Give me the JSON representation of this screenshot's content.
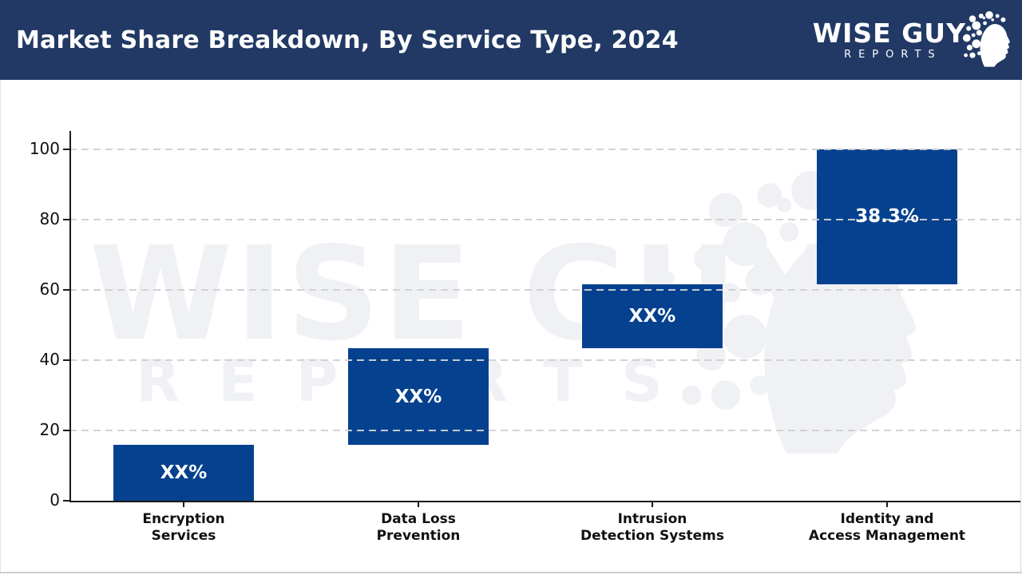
{
  "header": {
    "title": "Market Share Breakdown, By Service Type, 2024",
    "logo": {
      "line1": "WISE GUY",
      "line2": "REPORTS",
      "head_icon": "dotted-head-profile-icon"
    }
  },
  "watermark": {
    "line1": "WISE GUY",
    "line2": "REPORTS"
  },
  "colors": {
    "header_bg": "#213964",
    "bar": "#05418f",
    "bar_label_text": "#ffffff",
    "grid": "#d0d0d2",
    "axis": "#1a1a1a",
    "watermark": "#f0f1f4",
    "title_text": "#ffffff"
  },
  "chart_data": {
    "type": "bar",
    "variant": "waterfall-floating-bars",
    "title": "Market Share Breakdown, By Service Type, 2024",
    "categories": [
      "Encryption Services",
      "Data Loss Prevention",
      "Intrusion Detection Systems",
      "Identity and Access Management"
    ],
    "category_lines": [
      [
        "Encryption",
        "Services"
      ],
      [
        "Data Loss",
        "Prevention"
      ],
      [
        "Intrusion",
        "Detection Systems"
      ],
      [
        "Identity and",
        "Access Management"
      ]
    ],
    "series": [
      {
        "name": "Market share (%)",
        "starts": [
          0,
          15.8,
          43.4,
          61.7
        ],
        "ends": [
          15.8,
          43.4,
          61.7,
          100
        ],
        "values": [
          15.8,
          27.6,
          18.3,
          38.3
        ]
      }
    ],
    "bar_labels": [
      "XX%",
      "XX%",
      "XX%",
      "38.3%"
    ],
    "xlabel": "",
    "ylabel": "",
    "y_ticks": [
      0,
      20,
      40,
      60,
      80,
      100
    ],
    "ylim": [
      0,
      105
    ],
    "grid": "horizontal-dashed",
    "grid_above_bars": true,
    "legend": "none"
  }
}
